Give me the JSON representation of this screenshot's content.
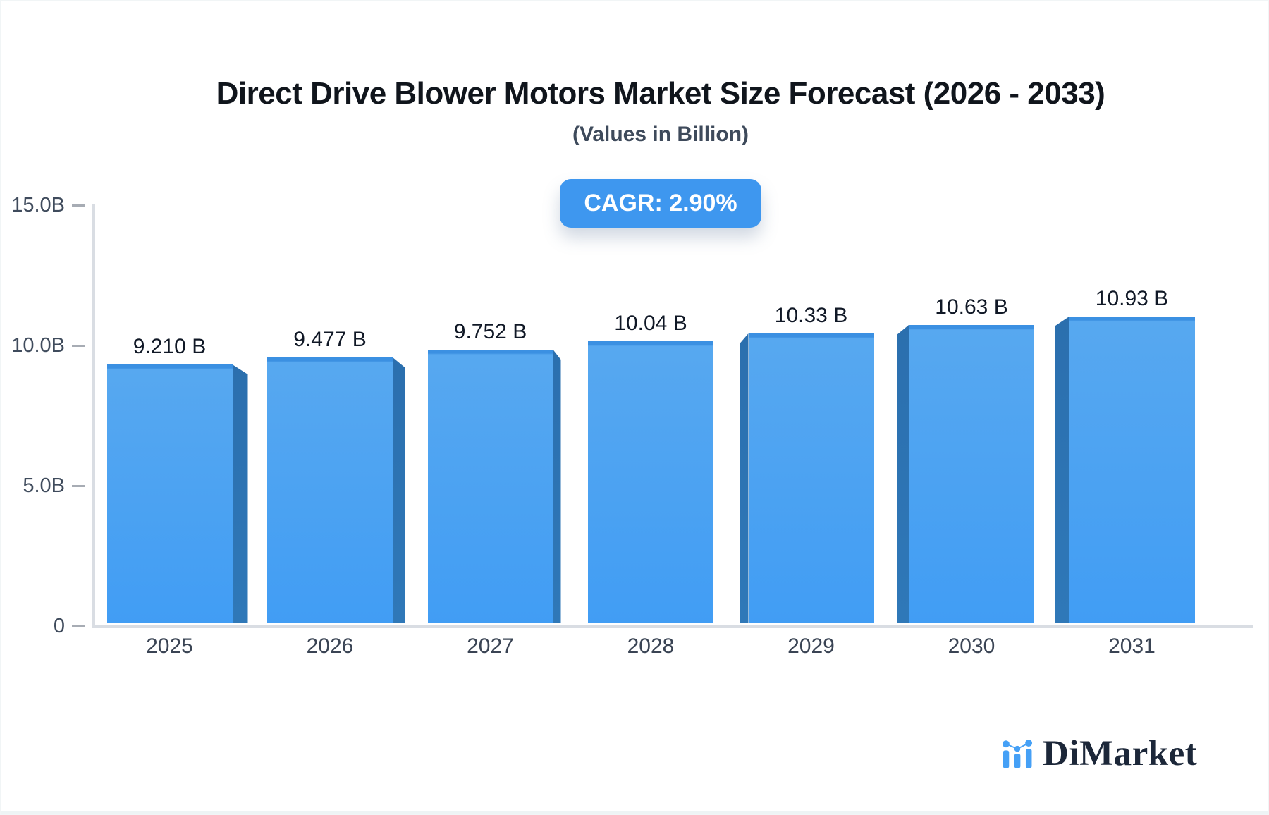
{
  "title": "Direct Drive Blower Motors Market Size Forecast (2026 - 2033)",
  "subtitle": "(Values in Billion)",
  "badge": {
    "label": "CAGR: 2.90%"
  },
  "colors": {
    "badge_blue": "#3e97ef",
    "bar_face_top": "#57a8f0",
    "bar_face_bottom": "#419df4",
    "bar_top_edge": "#3b90e2",
    "bar_side": "#2e75b3",
    "axis_line": "#d9dde3",
    "tick_dash": "#a7acb4",
    "logo_navy": "#1c2739",
    "logo_blue": "#45a0f6"
  },
  "chart_data": {
    "type": "bar",
    "title": "Direct Drive Blower Motors Market Size Forecast (2026 - 2033)",
    "subtitle": "(Values in Billion)",
    "xlabel": "",
    "ylabel": "",
    "categories": [
      "2025",
      "2026",
      "2027",
      "2028",
      "2029",
      "2030",
      "2031"
    ],
    "values": [
      9.21,
      9.477,
      9.752,
      10.04,
      10.33,
      10.63,
      10.93
    ],
    "value_labels": [
      "9.210 B",
      "9.477 B",
      "9.752 B",
      "10.04 B",
      "10.33 B",
      "10.63 B",
      "10.93 B"
    ],
    "unit": "Billion",
    "cagr": "2.90%",
    "ylim": [
      0,
      15
    ],
    "yticks": [
      {
        "label": "15.0B",
        "value": 15.0
      },
      {
        "label": "10.0B",
        "value": 10.0
      },
      {
        "label": "5.0B",
        "value": 5.0
      },
      {
        "label": "0",
        "value": 0
      }
    ],
    "grid": false,
    "legend": false
  },
  "watermark": {
    "brand": "DiMarket"
  }
}
